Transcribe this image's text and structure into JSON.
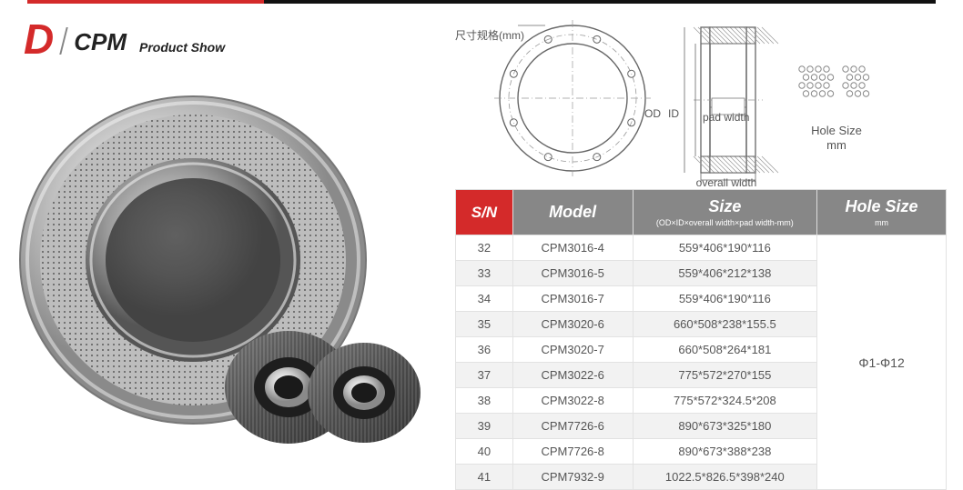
{
  "heading": {
    "letter": "D",
    "brand": "CPM",
    "subtitle": "Product Show"
  },
  "accent_color": "#d42a2a",
  "header_gray": "#878787",
  "drawings": {
    "size_label": "尺寸规格(mm)",
    "od_label": "OD",
    "id_label": "ID",
    "pad_width_label": "pad width",
    "overall_width_label": "overall width",
    "hole_size_label": "Hole Size",
    "hole_size_unit": "mm",
    "ring": {
      "outer_r": 80,
      "hole_r": 60,
      "bolt_r": 70,
      "bolt_hole_r": 4,
      "n_bolts": 8,
      "stroke": "#666666",
      "dash": "#999999"
    },
    "side": {
      "height": 160,
      "overall_w": 60,
      "pad_w": 40,
      "wall": 18,
      "stroke": "#666666",
      "hatch": "#999999"
    },
    "hole_pattern": {
      "dot_r": 3.2,
      "stroke": "#888888",
      "cols": 4,
      "rows": 4,
      "gap": 9
    }
  },
  "table": {
    "headers": {
      "sn": "S/N",
      "model": "Model",
      "size": "Size",
      "size_sub": "(OD×ID×overall width×pad width-mm)",
      "hole": "Hole Size",
      "hole_sub": "mm"
    },
    "hole_size_value": "Φ1-Φ12",
    "rows": [
      {
        "sn": "32",
        "model": "CPM3016-4",
        "size": "559*406*190*116"
      },
      {
        "sn": "33",
        "model": "CPM3016-5",
        "size": "559*406*212*138"
      },
      {
        "sn": "34",
        "model": "CPM3016-7",
        "size": "559*406*190*116"
      },
      {
        "sn": "35",
        "model": "CPM3020-6",
        "size": "660*508*238*155.5"
      },
      {
        "sn": "36",
        "model": "CPM3020-7",
        "size": "660*508*264*181"
      },
      {
        "sn": "37",
        "model": "CPM3022-6",
        "size": "775*572*270*155"
      },
      {
        "sn": "38",
        "model": "CPM3022-8",
        "size": "775*572*324.5*208"
      },
      {
        "sn": "39",
        "model": "CPM7726-6",
        "size": "890*673*325*180"
      },
      {
        "sn": "40",
        "model": "CPM7726-8",
        "size": "890*673*388*238"
      },
      {
        "sn": "41",
        "model": "CPM7932-9",
        "size": "1022.5*826.5*398*240"
      }
    ]
  }
}
